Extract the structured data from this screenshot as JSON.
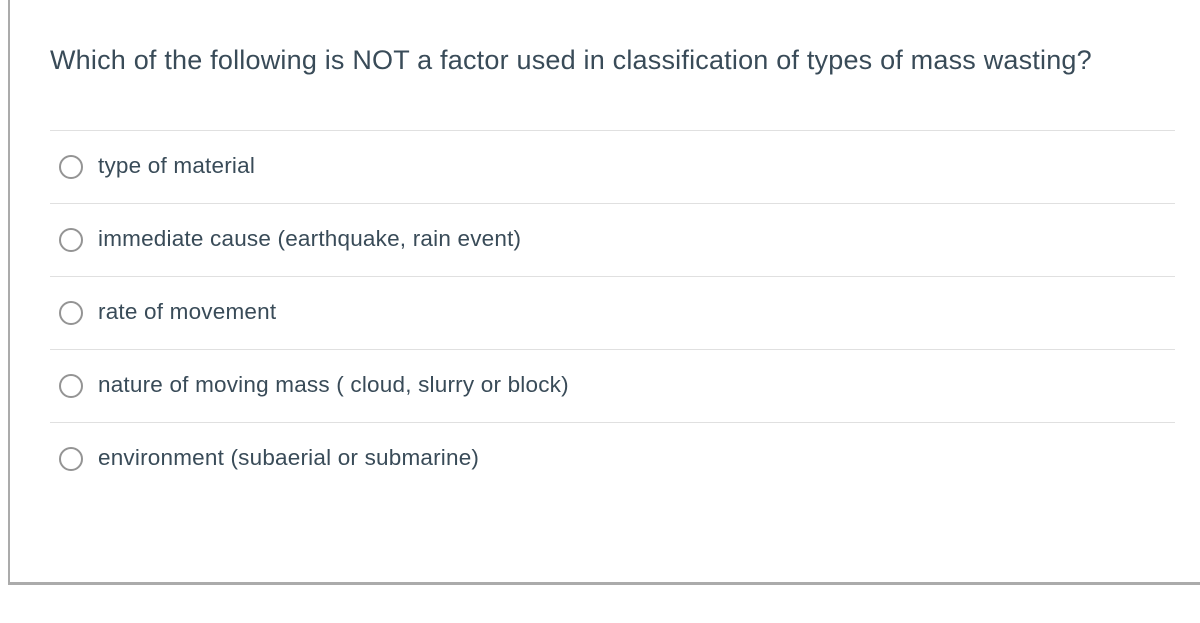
{
  "question": {
    "text": "Which of the following is NOT a factor used in classification of types of mass wasting?"
  },
  "options": [
    {
      "label": "type of material",
      "selected": false
    },
    {
      "label": "immediate cause (earthquake, rain event)",
      "selected": false
    },
    {
      "label": "rate of movement",
      "selected": false
    },
    {
      "label": "nature of moving mass ( cloud, slurry or block)",
      "selected": false
    },
    {
      "label": "environment (subaerial or submarine)",
      "selected": false
    }
  ],
  "colors": {
    "text": "#394B58",
    "divider": "#e0e0e0",
    "radio_border": "#949494",
    "card_border": "#ababab",
    "background": "#ffffff"
  }
}
